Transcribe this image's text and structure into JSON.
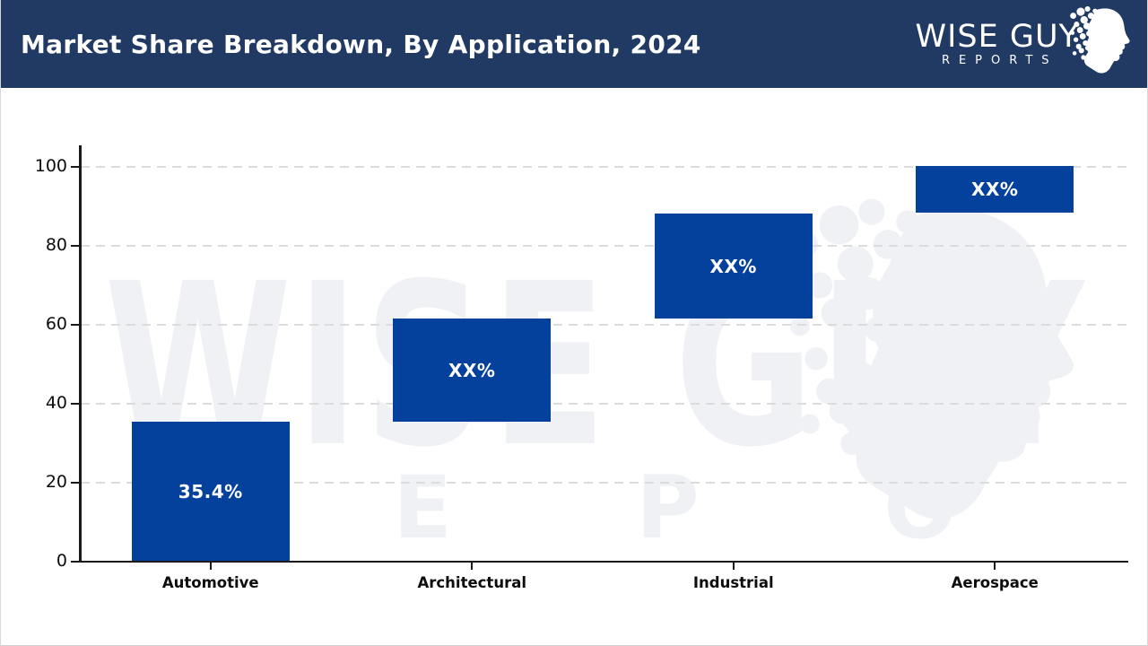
{
  "header": {
    "title": "Market Share Breakdown, By Application, 2024",
    "logo": {
      "line1": "WISE GUY",
      "line2": "REPORTS",
      "icon": "dotted-face-profile-icon"
    }
  },
  "watermark": {
    "line1": "WISE GUY",
    "line2": "R E P O R T S",
    "icon": "dotted-face-profile-icon"
  },
  "colors": {
    "header_bg": "#213a64",
    "bar": "#04419d",
    "bar_label_text": "#ffffff",
    "gridline": "#dcdcdc",
    "axis": "#1a1a1a",
    "watermark": "#f0f1f4"
  },
  "chart_data": {
    "type": "bar",
    "variant": "stacked-waterfall-breakdown",
    "title": "Market Share Breakdown, By Application, 2024",
    "categories": [
      "Automotive",
      "Architectural",
      "Industrial",
      "Aerospace"
    ],
    "segments": [
      {
        "category": "Automotive",
        "start": 0,
        "end": 35.4,
        "label": "35.4%"
      },
      {
        "category": "Architectural",
        "start": 35.4,
        "end": 61.6,
        "label": "XX%"
      },
      {
        "category": "Industrial",
        "start": 61.6,
        "end": 88.1,
        "label": "XX%"
      },
      {
        "category": "Aerospace",
        "start": 88.3,
        "end": 100.3,
        "label": "XX%"
      }
    ],
    "unit": "%",
    "y_ticks": [
      0,
      20,
      40,
      60,
      80,
      100
    ],
    "ylim": [
      0,
      105
    ],
    "xlabel": "",
    "ylabel": "",
    "grid": "horizontal-dashed",
    "legend": "none"
  }
}
